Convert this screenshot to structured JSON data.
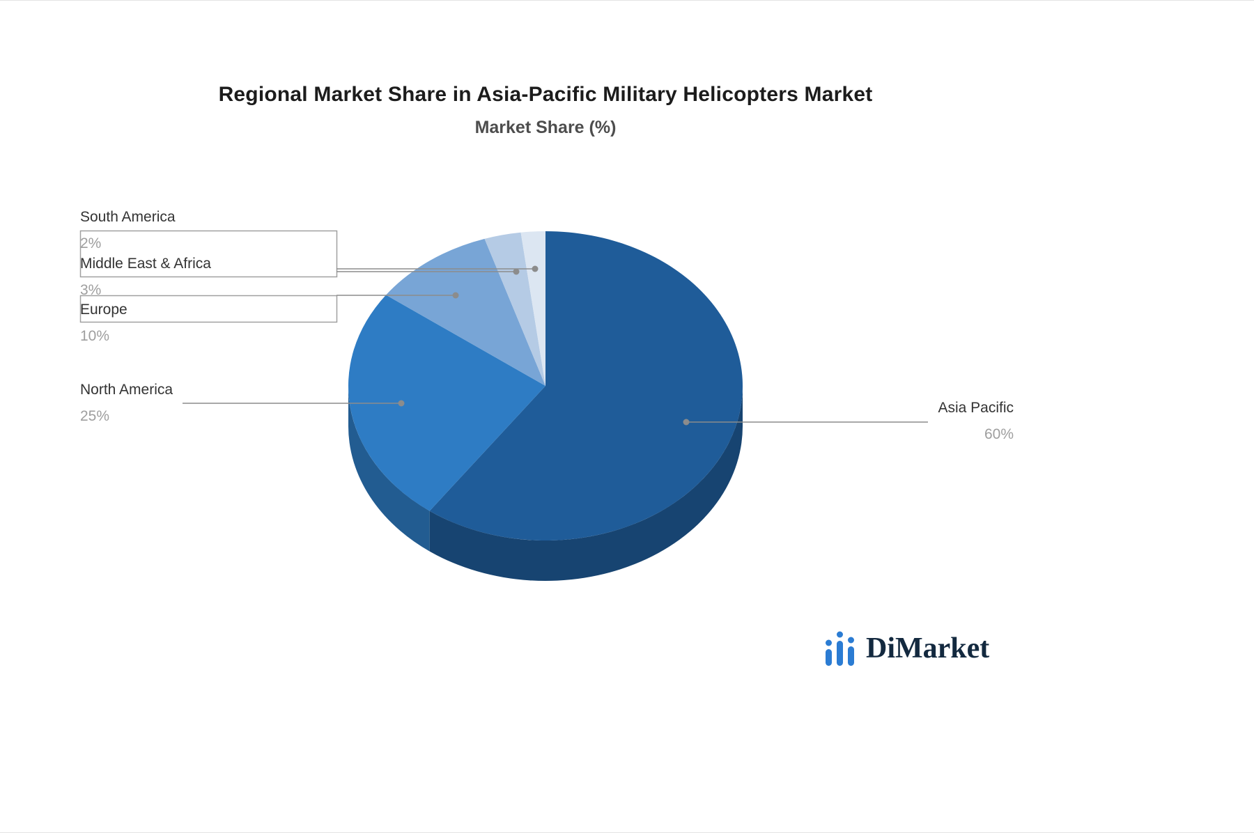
{
  "chart_data": {
    "type": "pie",
    "title": "Regional Market Share in Asia-Pacific Military Helicopters Market",
    "subtitle": "Market Share (%)",
    "unit": "%",
    "style": "3d",
    "start_angle_deg": 0,
    "direction": "clockwise",
    "legend_position": "none",
    "slices": [
      {
        "label": "Asia Pacific",
        "value": 60,
        "display": "60%",
        "color": "#1f5c99"
      },
      {
        "label": "North America",
        "value": 25,
        "display": "25%",
        "color": "#2e7cc4"
      },
      {
        "label": "Europe",
        "value": 10,
        "display": "10%",
        "color": "#78a5d6"
      },
      {
        "label": "Middle East & Africa",
        "value": 3,
        "display": "3%",
        "color": "#b5cbe5"
      },
      {
        "label": "South America",
        "value": 2,
        "display": "2%",
        "color": "#dce6f2"
      }
    ]
  },
  "branding": {
    "logo_text": "DiMarket",
    "logo_text_color": "#13293f",
    "logo_icon_color": "#2b7cd3"
  },
  "connector_color": "#8c8c8c"
}
